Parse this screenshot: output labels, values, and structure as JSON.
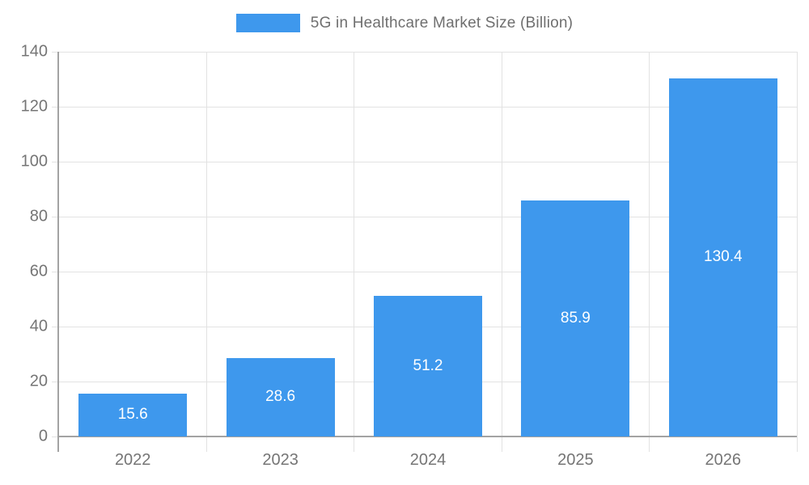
{
  "chart_data": {
    "type": "bar",
    "title": "5G in Healthcare Market Size (Billion)",
    "categories": [
      "2022",
      "2023",
      "2024",
      "2025",
      "2026"
    ],
    "values": [
      15.6,
      28.6,
      51.2,
      85.9,
      130.4
    ],
    "xlabel": "",
    "ylabel": "",
    "ylim": [
      0,
      140
    ],
    "ytick_step": 20,
    "grid": true,
    "legend_position": "top-center",
    "bar_color": "#3e98ed",
    "value_label_color": "#ffffff",
    "axis_text_color": "#757575"
  }
}
